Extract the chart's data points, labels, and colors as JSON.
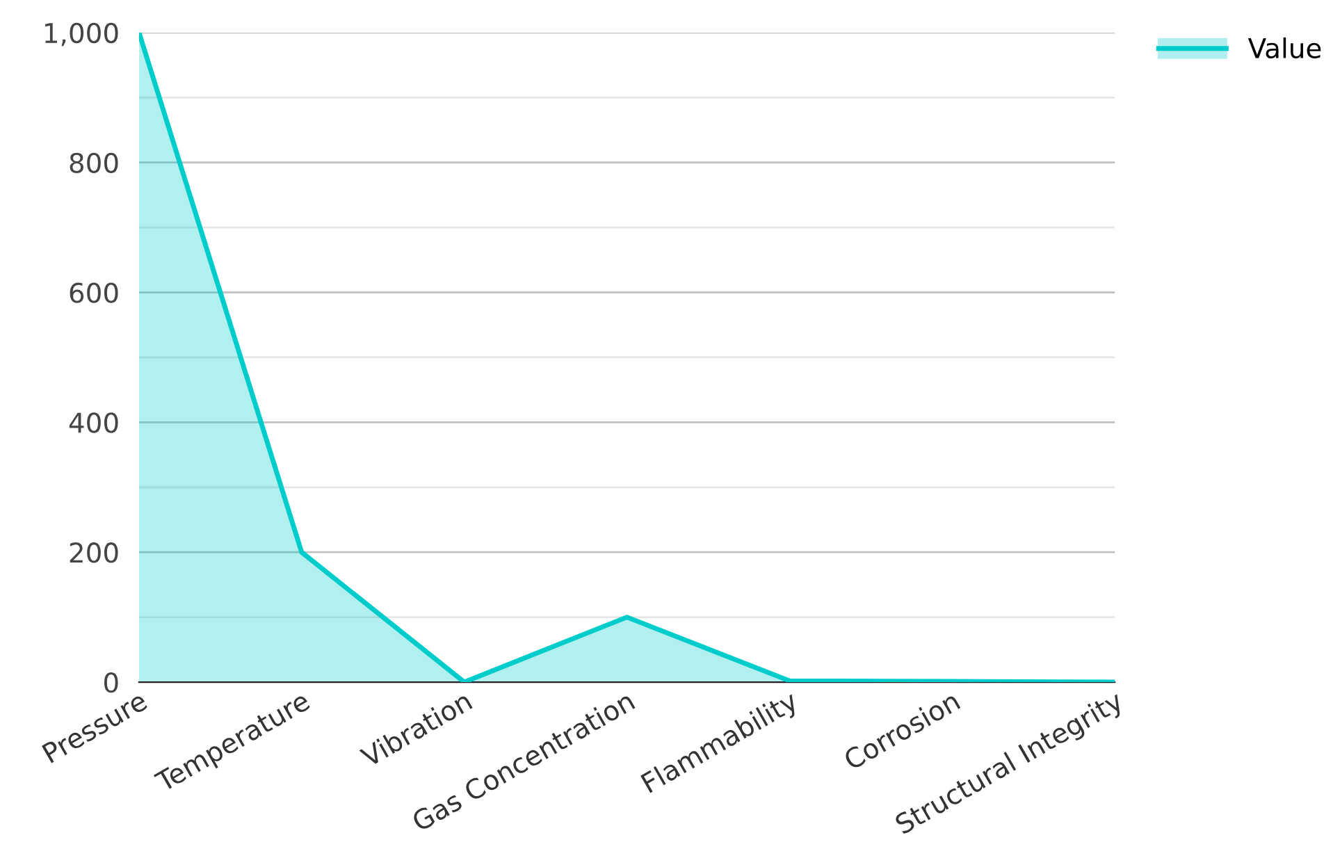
{
  "chart_data": {
    "type": "area",
    "categories": [
      "Pressure",
      "Temperature",
      "Vibration",
      "Gas Concentration",
      "Flammability",
      "Corrosion",
      "Structural Integrity"
    ],
    "series": [
      {
        "name": "Value",
        "color": "#00cccc",
        "values": [
          1000,
          200,
          0,
          100,
          2,
          1,
          0
        ]
      }
    ],
    "ylim": [
      0,
      1000
    ],
    "yticks": [
      0,
      {
        "value": 100,
        "label": null
      },
      200,
      {
        "value": 300,
        "label": null
      },
      400,
      {
        "value": 500,
        "label": null
      },
      600,
      {
        "value": 700,
        "label": null
      },
      800,
      {
        "value": 900,
        "label": null
      },
      {
        "value": 1000,
        "label": "1,000"
      }
    ],
    "grid": "y",
    "legend": "top right",
    "marker": "none"
  }
}
